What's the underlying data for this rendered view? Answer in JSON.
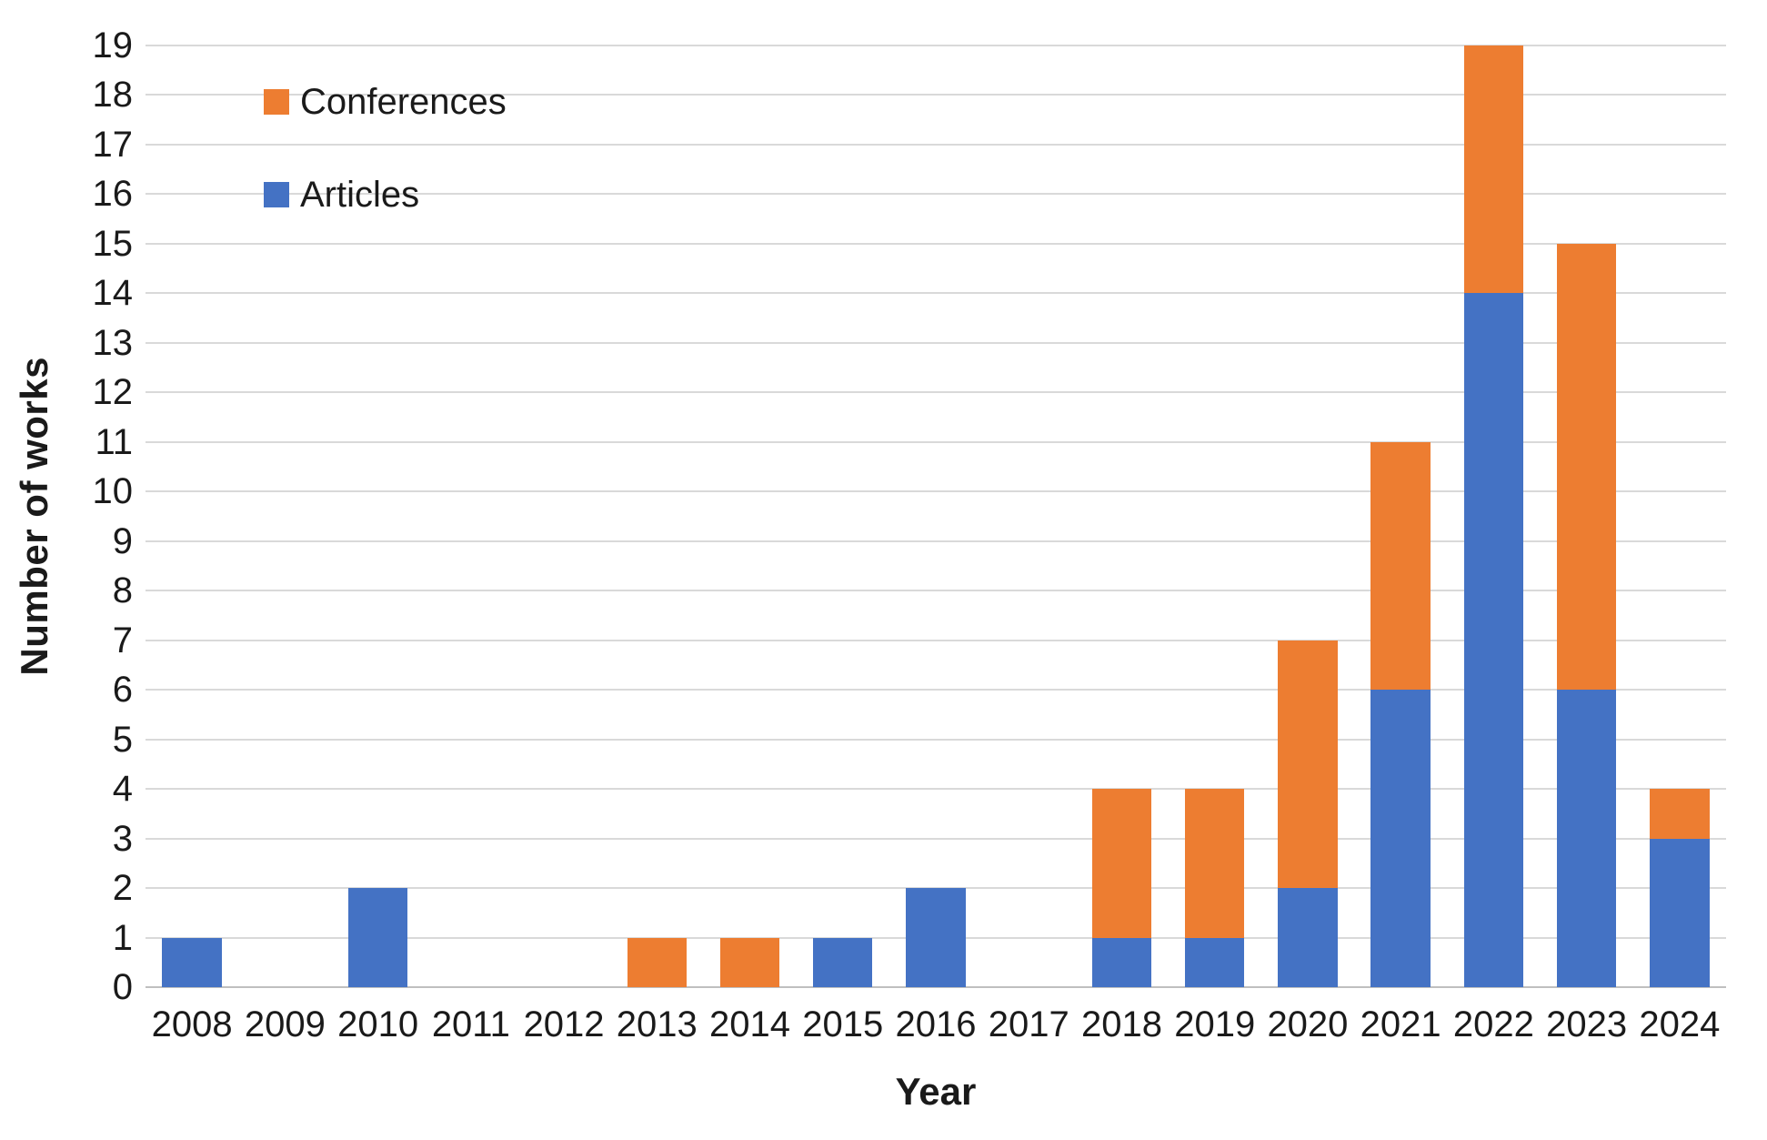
{
  "chart_data": {
    "type": "bar",
    "stacked": true,
    "title": "",
    "xlabel": "Year",
    "ylabel": "Number of works",
    "ylim": [
      0,
      19
    ],
    "ytick_step": 1,
    "grid": true,
    "legend_position": "top-left",
    "categories": [
      "2008",
      "2009",
      "2010",
      "2011",
      "2012",
      "2013",
      "2014",
      "2015",
      "2016",
      "2017",
      "2018",
      "2019",
      "2020",
      "2021",
      "2022",
      "2023",
      "2024"
    ],
    "series": [
      {
        "name": "Articles",
        "color": "#4472C4",
        "values": [
          1,
          0,
          2,
          0,
          0,
          0,
          0,
          1,
          2,
          0,
          1,
          1,
          2,
          6,
          14,
          6,
          3
        ]
      },
      {
        "name": "Conferences",
        "color": "#ED7D31",
        "values": [
          0,
          0,
          0,
          0,
          0,
          1,
          1,
          0,
          0,
          0,
          3,
          3,
          5,
          5,
          5,
          9,
          1
        ]
      }
    ]
  },
  "legend": {
    "items": [
      {
        "label": "Conferences",
        "color": "#ED7D31"
      },
      {
        "label": "Articles",
        "color": "#4472C4"
      }
    ]
  },
  "colors": {
    "gridline": "#d9d9d9",
    "axis_line": "#bfbfbf",
    "text": "#1a1a1a"
  }
}
